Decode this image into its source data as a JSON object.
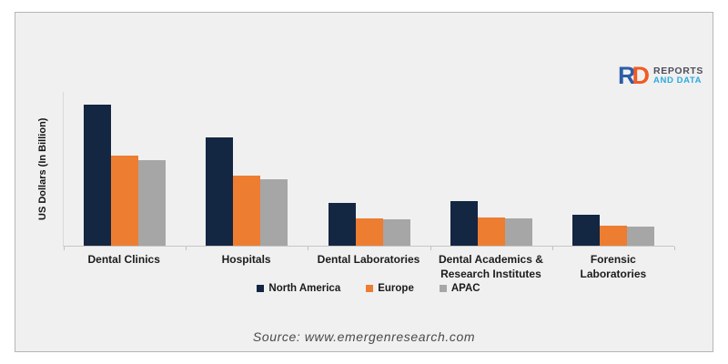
{
  "logo": {
    "monogram_r": "R",
    "monogram_d": "D",
    "brand_top": "REPORTS",
    "brand_bottom": "AND DATA",
    "colors": {
      "r_blue": "#2e5da8",
      "d_orange": "#f15a24",
      "top_text": "#4e4e5e",
      "bottom_text": "#29abe2"
    }
  },
  "chart_data": {
    "type": "bar",
    "title": "",
    "xlabel": "",
    "ylabel": "US Dollars (In Billion)",
    "categories": [
      "Dental Clinics",
      "Hospitals",
      "Dental Laboratories",
      "Dental Academics & Research Institutes",
      "Forensic Laboratories"
    ],
    "series": [
      {
        "name": "North America",
        "color": "#132642",
        "values": [
          15.6,
          12.0,
          4.7,
          4.9,
          3.4
        ]
      },
      {
        "name": "Europe",
        "color": "#ED7D31",
        "values": [
          10.0,
          7.7,
          3.0,
          3.1,
          2.2
        ]
      },
      {
        "name": "APAC",
        "color": "#A6A6A6",
        "values": [
          9.5,
          7.3,
          2.9,
          3.0,
          2.1
        ]
      }
    ],
    "ylim": [
      0,
      17
    ],
    "grid": false,
    "value_axis_tick_labels": false,
    "legend_position": "bottom",
    "note": "No numeric tick labels shown in chart; values estimated from bar heights in relative billion-USD units"
  },
  "source": {
    "text": "Source: www.emergenresearch.com"
  }
}
